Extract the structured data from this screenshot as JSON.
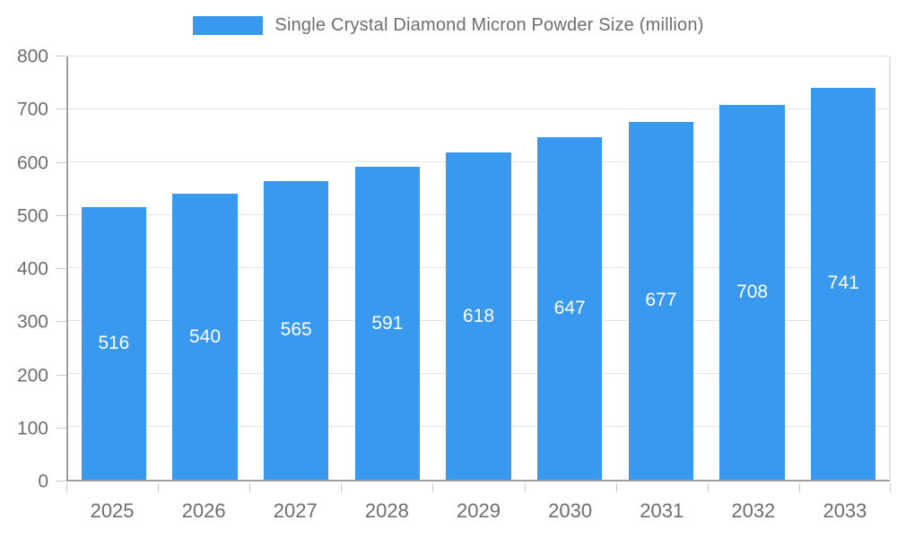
{
  "legend": {
    "label": "Single Crystal Diamond Micron Powder Size (million)"
  },
  "chart_data": {
    "type": "bar",
    "title": "Single Crystal Diamond Micron Powder Size (million)",
    "categories": [
      "2025",
      "2026",
      "2027",
      "2028",
      "2029",
      "2030",
      "2031",
      "2032",
      "2033"
    ],
    "values": [
      516,
      540,
      565,
      591,
      618,
      647,
      677,
      708,
      741
    ],
    "xlabel": "",
    "ylabel": "",
    "ylim": [
      0,
      800
    ],
    "yticks": [
      0,
      100,
      200,
      300,
      400,
      500,
      600,
      700,
      800
    ],
    "grid": true,
    "legend_position": "top",
    "value_labels": "inside-center",
    "colors": {
      "bar": "#3999EE",
      "grid": "#E4E4E4",
      "axis": "#9E9E9E",
      "tick": "#C9C9C9",
      "tick_label": "#6E6E6E",
      "value_label": "#FFFFFF",
      "background": "#FFFFFF"
    }
  }
}
